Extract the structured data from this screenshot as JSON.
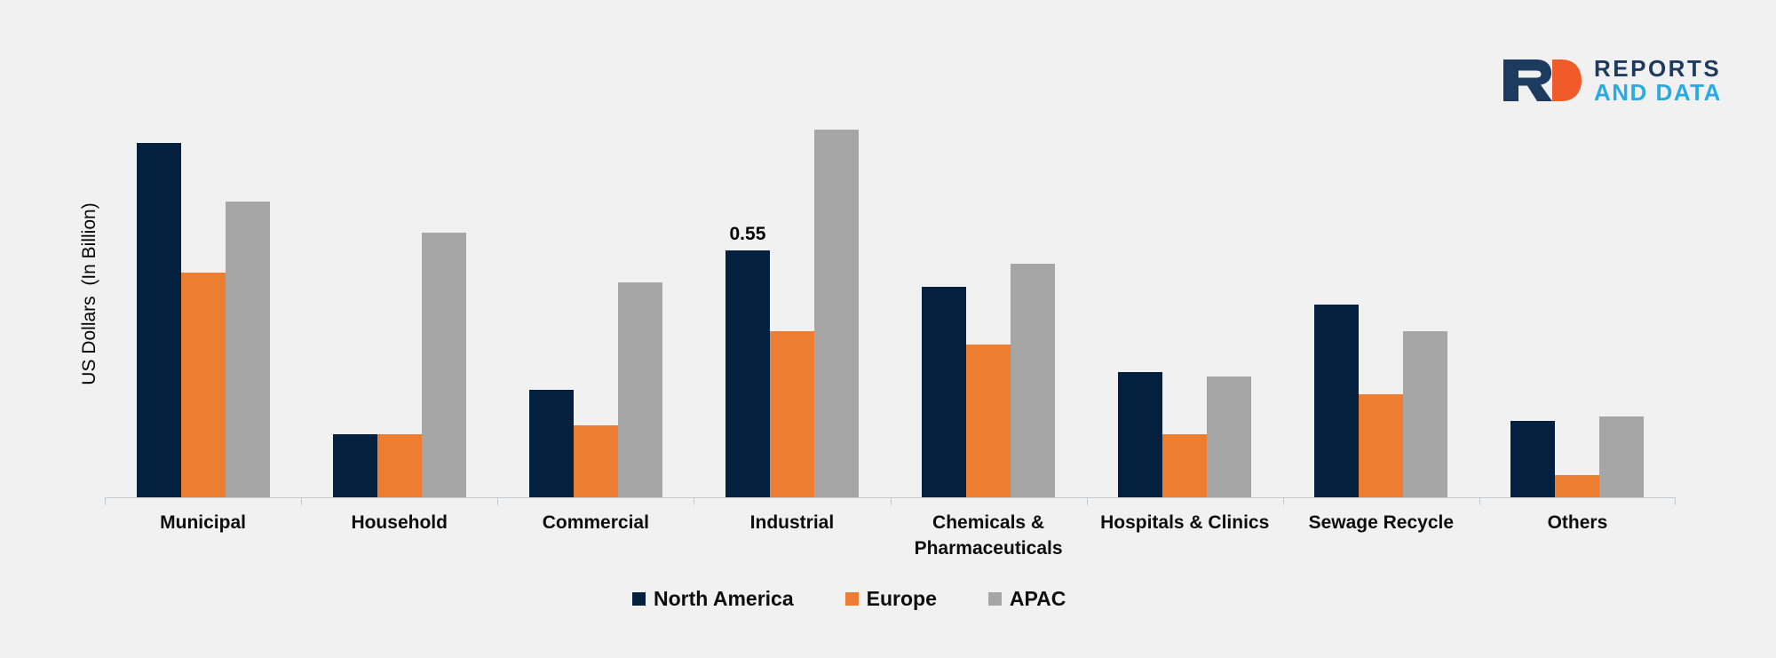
{
  "logo": {
    "line1": "REPORTS",
    "line2": "AND DATA",
    "navy": "#1d3a5f",
    "blue": "#29abe2",
    "orange": "#f15a29"
  },
  "chart_data": {
    "type": "bar",
    "title": "",
    "xlabel": "",
    "ylabel": "US Dollars  (In Billion)",
    "ylim": [
      0,
      0.9
    ],
    "grid": false,
    "legend_position": "bottom",
    "categories": [
      "Municipal",
      "Household",
      "Commercial",
      "Industrial",
      "Chemicals & Pharmaceuticals",
      "Hospitals & Clinics",
      "Sewage Recycle",
      "Others"
    ],
    "series": [
      {
        "name": "North America",
        "color": "#04203f",
        "values": [
          0.79,
          0.14,
          0.24,
          0.55,
          0.47,
          0.28,
          0.43,
          0.17
        ]
      },
      {
        "name": "Europe",
        "color": "#ed7d31",
        "values": [
          0.5,
          0.14,
          0.16,
          0.37,
          0.34,
          0.14,
          0.23,
          0.05
        ]
      },
      {
        "name": "APAC",
        "color": "#a6a6a6",
        "values": [
          0.66,
          0.59,
          0.48,
          0.82,
          0.52,
          0.27,
          0.37,
          0.18
        ]
      }
    ],
    "data_labels": [
      {
        "series": "North America",
        "category": "Industrial",
        "text": "0.55"
      }
    ]
  }
}
